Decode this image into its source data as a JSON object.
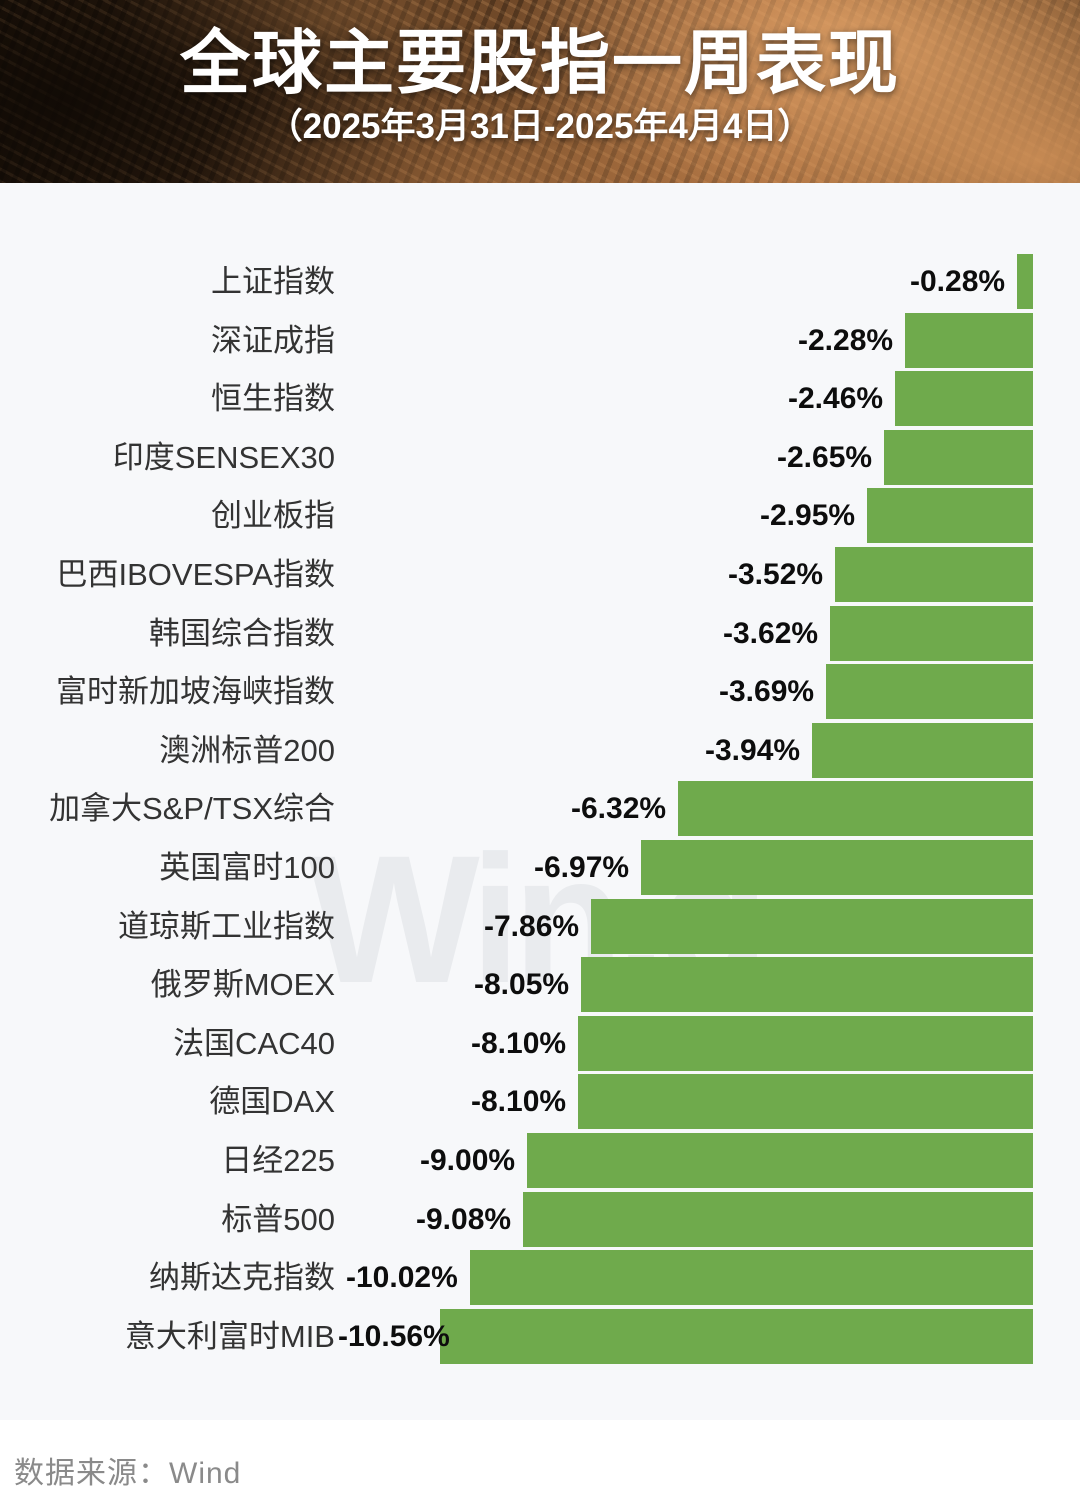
{
  "header": {
    "title": "全球主要股指一周表现",
    "subtitle": "（2025年3月31日-2025年4月4日）"
  },
  "chart_data": {
    "type": "bar",
    "orientation": "horizontal",
    "title": "全球主要股指一周表现",
    "subtitle": "（2025年3月31日-2025年4月4日）",
    "unit": "%",
    "xlim": [
      -11,
      0
    ],
    "grid": false,
    "bar_color": "#6faa4c",
    "background_color": "#f7f8fa",
    "watermark": "Win.d",
    "categories": [
      "上证指数",
      "深证成指",
      "恒生指数",
      "印度SENSEX30",
      "创业板指",
      "巴西IBOVESPA指数",
      "韩国综合指数",
      "富时新加坡海峡指数",
      "澳洲标普200",
      "加拿大S&P/TSX综合",
      "英国富时100",
      "道琼斯工业指数",
      "俄罗斯MOEX",
      "法国CAC40",
      "德国DAX",
      "日经225",
      "标普500",
      "纳斯达克指数",
      "意大利富时MIB"
    ],
    "values": [
      -0.28,
      -2.28,
      -2.46,
      -2.65,
      -2.95,
      -3.52,
      -3.62,
      -3.69,
      -3.94,
      -6.32,
      -6.97,
      -7.86,
      -8.05,
      -8.1,
      -8.1,
      -9.0,
      -9.08,
      -10.02,
      -10.56
    ],
    "value_labels": [
      "-0.28%",
      "-2.28%",
      "-2.46%",
      "-2.65%",
      "-2.95%",
      "-3.52%",
      "-3.62%",
      "-3.69%",
      "-3.94%",
      "-6.32%",
      "-6.97%",
      "-7.86%",
      "-8.05%",
      "-8.10%",
      "-8.10%",
      "-9.00%",
      "-9.08%",
      "-10.02%",
      "-10.56%"
    ]
  },
  "footer": {
    "source": "数据来源：Wind"
  }
}
